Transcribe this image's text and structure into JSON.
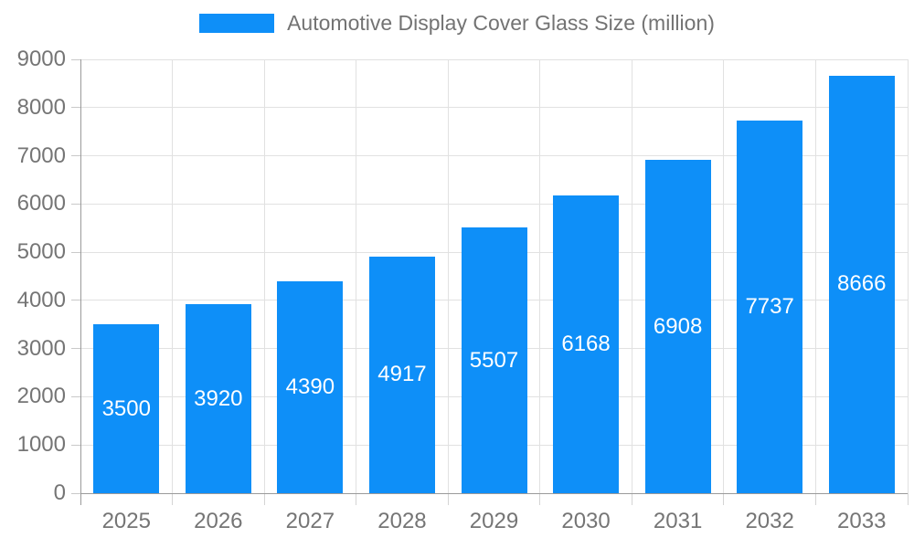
{
  "chart_data": {
    "type": "bar",
    "title": "",
    "legend": "Automotive Display Cover Glass Size (million)",
    "legend_position": "top",
    "categories": [
      "2025",
      "2026",
      "2027",
      "2028",
      "2029",
      "2030",
      "2031",
      "2032",
      "2033"
    ],
    "values": [
      3500,
      3920,
      4390,
      4917,
      5507,
      6168,
      6908,
      7737,
      8666
    ],
    "yticks": [
      0,
      1000,
      2000,
      3000,
      4000,
      5000,
      6000,
      7000,
      8000,
      9000
    ],
    "ylim": [
      0,
      9000
    ],
    "xlabel": "",
    "ylabel": "",
    "grid": true,
    "bar_color": "#0E8FF8",
    "bar_label_color": "#ffffff",
    "axis_text_color": "#757575"
  }
}
